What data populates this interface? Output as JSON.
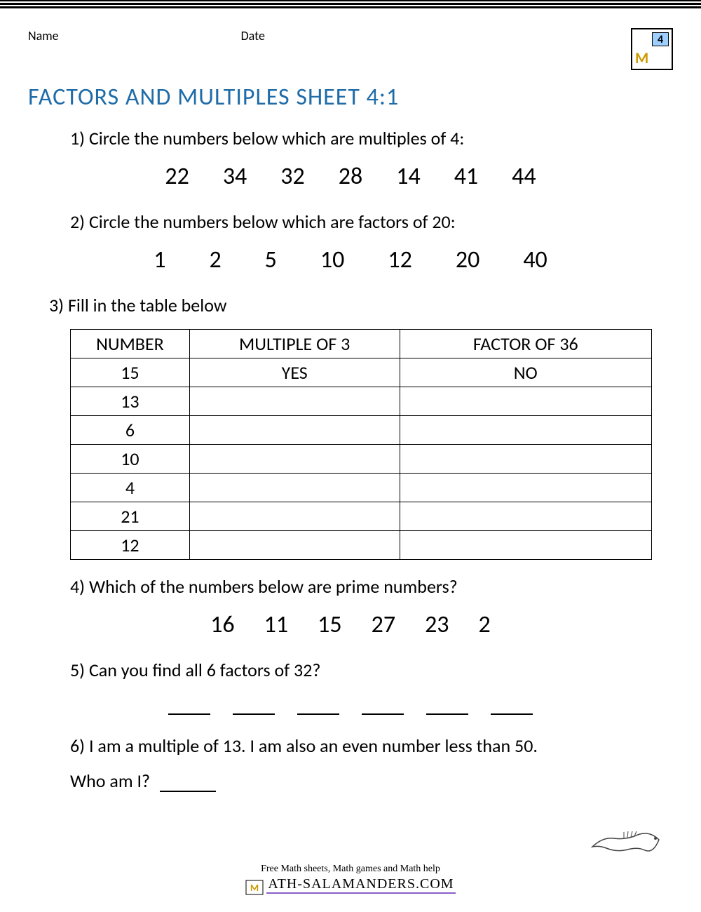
{
  "header": {
    "name_label": "Name",
    "date_label": "Date",
    "grade_number": "4"
  },
  "title": "FACTORS AND MULTIPLES SHEET 4:1",
  "q1": {
    "text": "1) Circle the numbers below which are multiples of 4:",
    "numbers": [
      "22",
      "34",
      "32",
      "28",
      "14",
      "41",
      "44"
    ]
  },
  "q2": {
    "text": "2) Circle the numbers below which are factors of 20:",
    "numbers": [
      "1",
      "2",
      "5",
      "10",
      "12",
      "20",
      "40"
    ]
  },
  "q3": {
    "text": "3) Fill in the table below",
    "headers": [
      "NUMBER",
      "MULTIPLE OF 3",
      "FACTOR OF 36"
    ],
    "rows": [
      [
        "15",
        "YES",
        "NO"
      ],
      [
        "13",
        "",
        ""
      ],
      [
        "6",
        "",
        ""
      ],
      [
        "10",
        "",
        ""
      ],
      [
        "4",
        "",
        ""
      ],
      [
        "21",
        "",
        ""
      ],
      [
        "12",
        "",
        ""
      ]
    ]
  },
  "q4": {
    "text": "4) Which of the numbers below are prime numbers?",
    "numbers": [
      "16",
      "11",
      "15",
      "27",
      "23",
      "2"
    ]
  },
  "q5": {
    "text": "5) Can you find all 6 factors of 32?",
    "blank_count": 6
  },
  "q6": {
    "text": "6) I am a multiple of 13. I am also an even number less than 50.",
    "who": "Who am I?"
  },
  "footer": {
    "tagline": "Free Math sheets, Math games and Math help",
    "site": "ATH-SALAMANDERS.COM",
    "logo_prefix": "M"
  }
}
